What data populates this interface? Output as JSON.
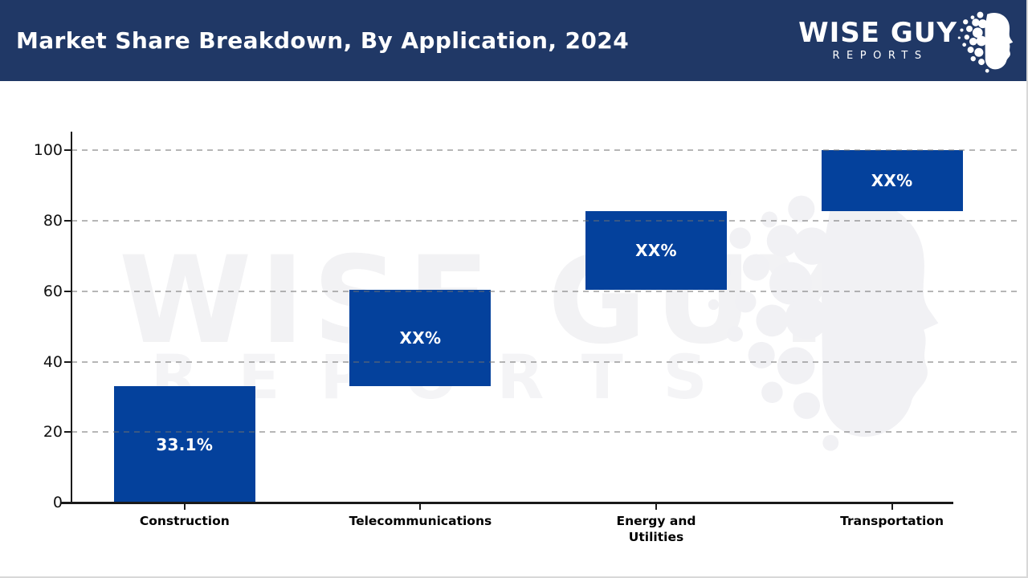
{
  "header": {
    "title": "Market Share Breakdown, By Application, 2024",
    "logo": {
      "line1": "WISE GUY",
      "line2": "REPORTS"
    }
  },
  "watermark": {
    "line1": "WISE GUY",
    "line2": "REPORTS"
  },
  "chart_data": {
    "type": "bar",
    "subtype": "waterfall",
    "title": "Market Share Breakdown, By Application, 2024",
    "categories": [
      "Construction",
      "Telecommunications",
      "Energy and Utilities",
      "Transportation"
    ],
    "x_tick_labels": [
      "Construction",
      "Telecommunications",
      "Energy and\nUtilities",
      "Transportation"
    ],
    "segments": [
      {
        "category": "Construction",
        "start": 0,
        "end": 33.1,
        "label": "33.1%"
      },
      {
        "category": "Telecommunications",
        "start": 33.1,
        "end": 60.5,
        "label": "XX%"
      },
      {
        "category": "Energy and Utilities",
        "start": 60.5,
        "end": 82.6,
        "label": "XX%"
      },
      {
        "category": "Transportation",
        "start": 82.6,
        "end": 100,
        "label": "XX%"
      }
    ],
    "yticks": [
      0,
      20,
      40,
      60,
      80,
      100
    ],
    "ylim": [
      0,
      105
    ],
    "xlabel": "",
    "ylabel": "",
    "grid": "horizontal-dashed",
    "legend": "none",
    "bar_color": "#04419c",
    "bar_label_color": "#ffffff"
  },
  "colors": {
    "header_bg": "#203866",
    "bar": "#04419c",
    "axis": "#1a1a1a",
    "grid": "#8c8c8c",
    "watermark": "#f2f2f4"
  }
}
